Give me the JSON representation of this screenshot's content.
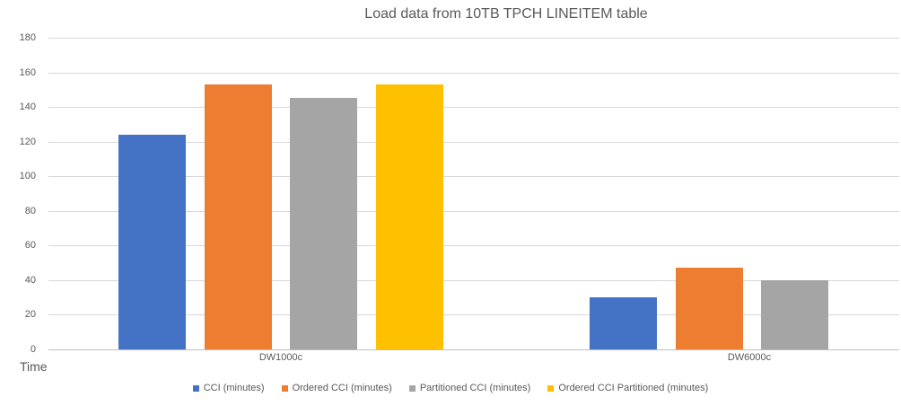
{
  "chart_data": {
    "type": "bar",
    "title": "Load data from 10TB TPCH LINEITEM table",
    "categories": [
      "DW1000c",
      "DW6000c"
    ],
    "series": [
      {
        "name": "CCI (minutes)",
        "color": "#4472C4",
        "values": [
          124,
          30
        ]
      },
      {
        "name": "Ordered CCI (minutes)",
        "color": "#ED7D31",
        "values": [
          153,
          47
        ]
      },
      {
        "name": "Partitioned CCI (minutes)",
        "color": "#A5A5A5",
        "values": [
          145,
          40
        ]
      },
      {
        "name": "Ordered CCI Partitioned (minutes)",
        "color": "#FFC000",
        "values": [
          153,
          0
        ]
      }
    ],
    "xlabel": "",
    "ylabel": "Time",
    "ylim": [
      0,
      180
    ],
    "yticks": [
      0,
      20,
      40,
      60,
      80,
      100,
      120,
      140,
      160,
      180
    ],
    "grid": true,
    "legend_position": "bottom"
  },
  "colors": {
    "background": "#FFFFFF",
    "gridline": "#D9D9D9",
    "axis_line": "#BFBFBF",
    "text": "#595959"
  }
}
